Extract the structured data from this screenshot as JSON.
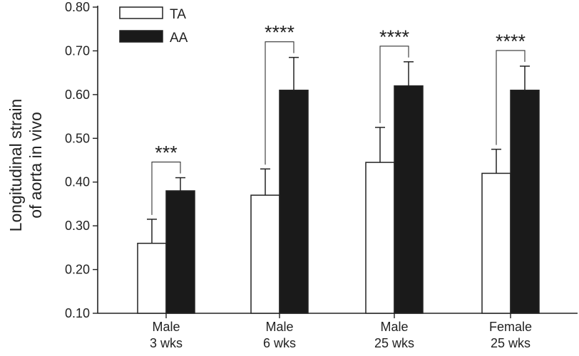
{
  "chart_data": {
    "type": "bar",
    "title": "",
    "ylabel_lines": [
      "Longitudinal strain",
      "of aorta in vivo"
    ],
    "ylim": [
      0.1,
      0.8
    ],
    "yticks": [
      "0.10",
      "0.20",
      "0.30",
      "0.40",
      "0.50",
      "0.60",
      "0.70",
      "0.80"
    ],
    "categories": [
      {
        "line1": "Male",
        "line2": "3 wks"
      },
      {
        "line1": "Male",
        "line2": "6 wks"
      },
      {
        "line1": "Male",
        "line2": "25 wks"
      },
      {
        "line1": "Female",
        "line2": "25 wks"
      }
    ],
    "series": [
      {
        "name": "TA",
        "color": "#ffffff",
        "values": [
          0.26,
          0.37,
          0.445,
          0.42
        ],
        "errors": [
          0.055,
          0.06,
          0.08,
          0.055
        ]
      },
      {
        "name": "AA",
        "color": "#1a1a1a",
        "values": [
          0.38,
          0.61,
          0.62,
          0.61
        ],
        "errors": [
          0.03,
          0.075,
          0.055,
          0.055
        ]
      }
    ],
    "significance": [
      "***",
      "****",
      "****",
      "****"
    ],
    "legend_position": "top-left",
    "grid": false
  }
}
